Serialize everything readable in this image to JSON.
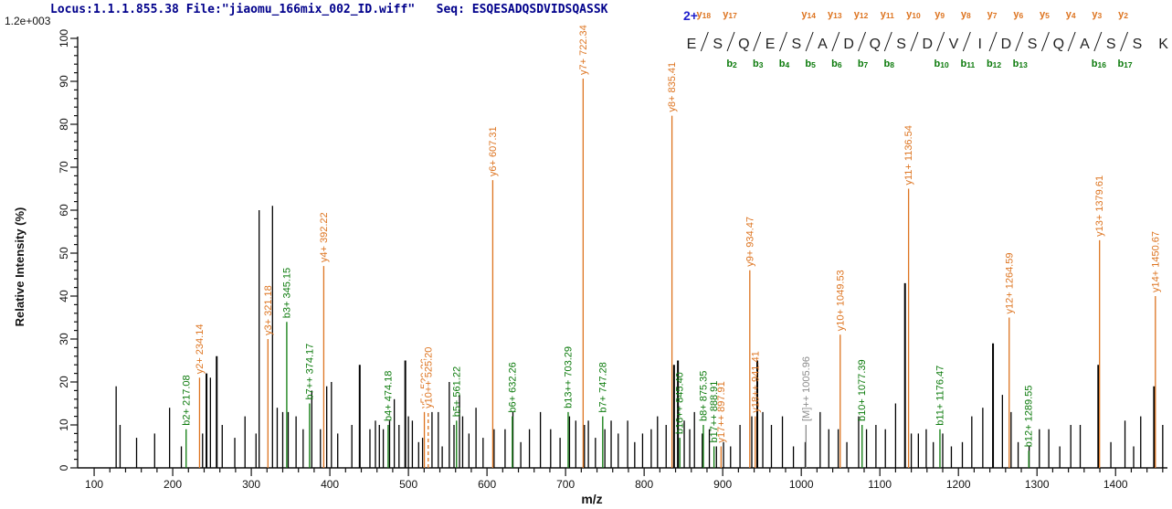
{
  "header": {
    "locus_line": "Locus:1.1.1.855.38 File:\"jiaomu_166mix_002_ID.wiff\"   Seq: ESQESADQSDVIDSQASSK",
    "scale_factor": "1.2e+003"
  },
  "colors": {
    "y_ion": "#DD7420",
    "b_ion": "#0B7A0B",
    "precursor": "#8C8C8C",
    "peak": "#000000",
    "axis": "#111111",
    "header_text": "#00008B",
    "charge_text": "#2020CC",
    "residue_text": "#222222"
  },
  "sequence_panel": {
    "charge_label": "2+",
    "residues": [
      "E",
      "S",
      "Q",
      "E",
      "S",
      "A",
      "D",
      "Q",
      "S",
      "D",
      "V",
      "I",
      "D",
      "S",
      "Q",
      "A",
      "S",
      "S",
      "K"
    ],
    "cleavages": [
      {
        "after": 0,
        "y": "y18",
        "b": null
      },
      {
        "after": 1,
        "y": "y17",
        "b": "b2"
      },
      {
        "after": 2,
        "y": null,
        "b": "b3"
      },
      {
        "after": 3,
        "y": null,
        "b": "b4"
      },
      {
        "after": 4,
        "y": "y14",
        "b": "b5"
      },
      {
        "after": 5,
        "y": "y13",
        "b": "b6"
      },
      {
        "after": 6,
        "y": "y12",
        "b": "b7"
      },
      {
        "after": 7,
        "y": "y11",
        "b": "b8"
      },
      {
        "after": 8,
        "y": "y10",
        "b": null
      },
      {
        "after": 9,
        "y": "y9",
        "b": "b10"
      },
      {
        "after": 10,
        "y": "y8",
        "b": "b11"
      },
      {
        "after": 11,
        "y": "y7",
        "b": "b12"
      },
      {
        "after": 12,
        "y": "y6",
        "b": "b13"
      },
      {
        "after": 13,
        "y": "y5",
        "b": null
      },
      {
        "after": 14,
        "y": "y4",
        "b": null
      },
      {
        "after": 15,
        "y": "y3",
        "b": "b16"
      },
      {
        "after": 16,
        "y": "y2",
        "b": "b17"
      }
    ]
  },
  "chart_data": {
    "type": "bar",
    "variant": "centroided-ms2-stick-spectrum",
    "title": "",
    "xlabel": "m/z",
    "ylabel": "Relative Intensity (%)",
    "xlim": [
      79,
      1466
    ],
    "ylim": [
      0,
      100
    ],
    "x_ticks": [
      100,
      200,
      300,
      400,
      500,
      600,
      700,
      800,
      900,
      1000,
      1100,
      1200,
      1300,
      1400
    ],
    "x_minor_step": 20,
    "y_ticks": [
      0,
      10,
      20,
      30,
      40,
      50,
      60,
      70,
      80,
      90,
      100
    ],
    "y_minor_step": 2,
    "grid": false,
    "labeled_peaks": [
      {
        "ion": "y2+",
        "mz": 234.14,
        "intensity": 21,
        "series": "y"
      },
      {
        "ion": "y3+",
        "mz": 321.18,
        "intensity": 30,
        "series": "y"
      },
      {
        "ion": "y4+",
        "mz": 392.22,
        "intensity": 47,
        "series": "y"
      },
      {
        "ion": "y5+",
        "mz": 520.26,
        "intensity": 13,
        "series": "y",
        "obscured": true
      },
      {
        "ion": "y10++",
        "mz": 525.2,
        "intensity": 13,
        "series": "y",
        "dashed": true
      },
      {
        "ion": "y6+",
        "mz": 607.31,
        "intensity": 67,
        "series": "y"
      },
      {
        "ion": "y7+",
        "mz": 722.34,
        "intensity": 100,
        "series": "y"
      },
      {
        "ion": "y8+",
        "mz": 835.41,
        "intensity": 82,
        "series": "y"
      },
      {
        "ion": "y17++",
        "mz": 897.91,
        "intensity": 5,
        "series": "y"
      },
      {
        "ion": "y9+",
        "mz": 934.47,
        "intensity": 46,
        "series": "y"
      },
      {
        "ion": "y18++",
        "mz": 941.41,
        "intensity": 12,
        "series": "y"
      },
      {
        "ion": "y10+",
        "mz": 1049.53,
        "intensity": 31,
        "series": "y"
      },
      {
        "ion": "y11+",
        "mz": 1136.54,
        "intensity": 65,
        "series": "y"
      },
      {
        "ion": "y12+",
        "mz": 1264.59,
        "intensity": 35,
        "series": "y"
      },
      {
        "ion": "y13+",
        "mz": 1379.61,
        "intensity": 53,
        "series": "y"
      },
      {
        "ion": "y14+",
        "mz": 1450.67,
        "intensity": 40,
        "series": "y"
      },
      {
        "ion": "b2+",
        "mz": 217.08,
        "intensity": 9,
        "series": "b"
      },
      {
        "ion": "b3+",
        "mz": 345.15,
        "intensity": 34,
        "series": "b"
      },
      {
        "ion": "b7++",
        "mz": 374.17,
        "intensity": 15,
        "series": "b"
      },
      {
        "ion": "b4+",
        "mz": 474.18,
        "intensity": 10,
        "series": "b"
      },
      {
        "ion": "b5+",
        "mz": 561.22,
        "intensity": 11,
        "series": "b"
      },
      {
        "ion": "b6+",
        "mz": 632.26,
        "intensity": 12,
        "series": "b"
      },
      {
        "ion": "b13++",
        "mz": 703.29,
        "intensity": 13,
        "series": "b"
      },
      {
        "ion": "b7+",
        "mz": 747.28,
        "intensity": 12,
        "series": "b"
      },
      {
        "ion": "b16++",
        "mz": 845.4,
        "intensity": 7,
        "series": "b"
      },
      {
        "ion": "b8+",
        "mz": 875.35,
        "intensity": 10,
        "series": "b"
      },
      {
        "ion": "b17++",
        "mz": 888.91,
        "intensity": 5,
        "series": "b"
      },
      {
        "ion": "b10+",
        "mz": 1077.39,
        "intensity": 10,
        "series": "b"
      },
      {
        "ion": "b11+",
        "mz": 1176.47,
        "intensity": 9,
        "series": "b"
      },
      {
        "ion": "b12+",
        "mz": 1289.55,
        "intensity": 4,
        "series": "b"
      },
      {
        "ion": "[M]++",
        "mz": 1005.96,
        "intensity": 10,
        "series": "precursor"
      }
    ],
    "unlabeled_peaks": [
      [
        128,
        19
      ],
      [
        133,
        10
      ],
      [
        154,
        7
      ],
      [
        177,
        8
      ],
      [
        196,
        14
      ],
      [
        211,
        5
      ],
      [
        238,
        8
      ],
      [
        243,
        22,
        2
      ],
      [
        248,
        21
      ],
      [
        256,
        26,
        2
      ],
      [
        263,
        10
      ],
      [
        279,
        7
      ],
      [
        292,
        12
      ],
      [
        306,
        8
      ],
      [
        310,
        60
      ],
      [
        327,
        61
      ],
      [
        333,
        14
      ],
      [
        340,
        13
      ],
      [
        347,
        13
      ],
      [
        357,
        12
      ],
      [
        366,
        9
      ],
      [
        377,
        18
      ],
      [
        388,
        9
      ],
      [
        396,
        19
      ],
      [
        402,
        20
      ],
      [
        410,
        8
      ],
      [
        428,
        10
      ],
      [
        438,
        24,
        2
      ],
      [
        451,
        9
      ],
      [
        458,
        11
      ],
      [
        463,
        10
      ],
      [
        468,
        9
      ],
      [
        476,
        11
      ],
      [
        482,
        16
      ],
      [
        488,
        10
      ],
      [
        496,
        25,
        2
      ],
      [
        500,
        12
      ],
      [
        505,
        11
      ],
      [
        513,
        6
      ],
      [
        518,
        7
      ],
      [
        530,
        13
      ],
      [
        538,
        13
      ],
      [
        543,
        5
      ],
      [
        552,
        20
      ],
      [
        558,
        10
      ],
      [
        565,
        17
      ],
      [
        569,
        12
      ],
      [
        577,
        8
      ],
      [
        586,
        14
      ],
      [
        595,
        7
      ],
      [
        609,
        9
      ],
      [
        623,
        9
      ],
      [
        633,
        13
      ],
      [
        643,
        6
      ],
      [
        654,
        9
      ],
      [
        668,
        13
      ],
      [
        681,
        9
      ],
      [
        693,
        7
      ],
      [
        705,
        12
      ],
      [
        713,
        11
      ],
      [
        724,
        10
      ],
      [
        729,
        11
      ],
      [
        738,
        7
      ],
      [
        750,
        9
      ],
      [
        758,
        11
      ],
      [
        767,
        8
      ],
      [
        779,
        11
      ],
      [
        788,
        6
      ],
      [
        798,
        8
      ],
      [
        809,
        9
      ],
      [
        817,
        12
      ],
      [
        828,
        10
      ],
      [
        838,
        24,
        2
      ],
      [
        843,
        25,
        2
      ],
      [
        851,
        11
      ],
      [
        858,
        9
      ],
      [
        864,
        13
      ],
      [
        874,
        8
      ],
      [
        883,
        9
      ],
      [
        892,
        5
      ],
      [
        901,
        6
      ],
      [
        910,
        5
      ],
      [
        922,
        10
      ],
      [
        937,
        12
      ],
      [
        944,
        25,
        2
      ],
      [
        951,
        13
      ],
      [
        962,
        10
      ],
      [
        976,
        12
      ],
      [
        990,
        5
      ],
      [
        1005,
        6
      ],
      [
        1024,
        13
      ],
      [
        1035,
        9
      ],
      [
        1047,
        9
      ],
      [
        1058,
        6
      ],
      [
        1073,
        12
      ],
      [
        1083,
        9
      ],
      [
        1095,
        10
      ],
      [
        1107,
        9
      ],
      [
        1120,
        15
      ],
      [
        1132,
        43,
        2
      ],
      [
        1140,
        8
      ],
      [
        1149,
        8
      ],
      [
        1159,
        9
      ],
      [
        1168,
        6
      ],
      [
        1180,
        8
      ],
      [
        1191,
        5
      ],
      [
        1205,
        6
      ],
      [
        1217,
        12
      ],
      [
        1231,
        14
      ],
      [
        1244,
        29,
        2
      ],
      [
        1256,
        17
      ],
      [
        1267,
        13
      ],
      [
        1276,
        6
      ],
      [
        1290,
        5
      ],
      [
        1303,
        9
      ],
      [
        1315,
        9
      ],
      [
        1329,
        5
      ],
      [
        1343,
        10
      ],
      [
        1355,
        10
      ],
      [
        1378,
        24,
        2
      ],
      [
        1394,
        6
      ],
      [
        1412,
        11
      ],
      [
        1423,
        5
      ],
      [
        1432,
        12
      ],
      [
        1449,
        19,
        2
      ],
      [
        1460,
        10
      ]
    ]
  }
}
